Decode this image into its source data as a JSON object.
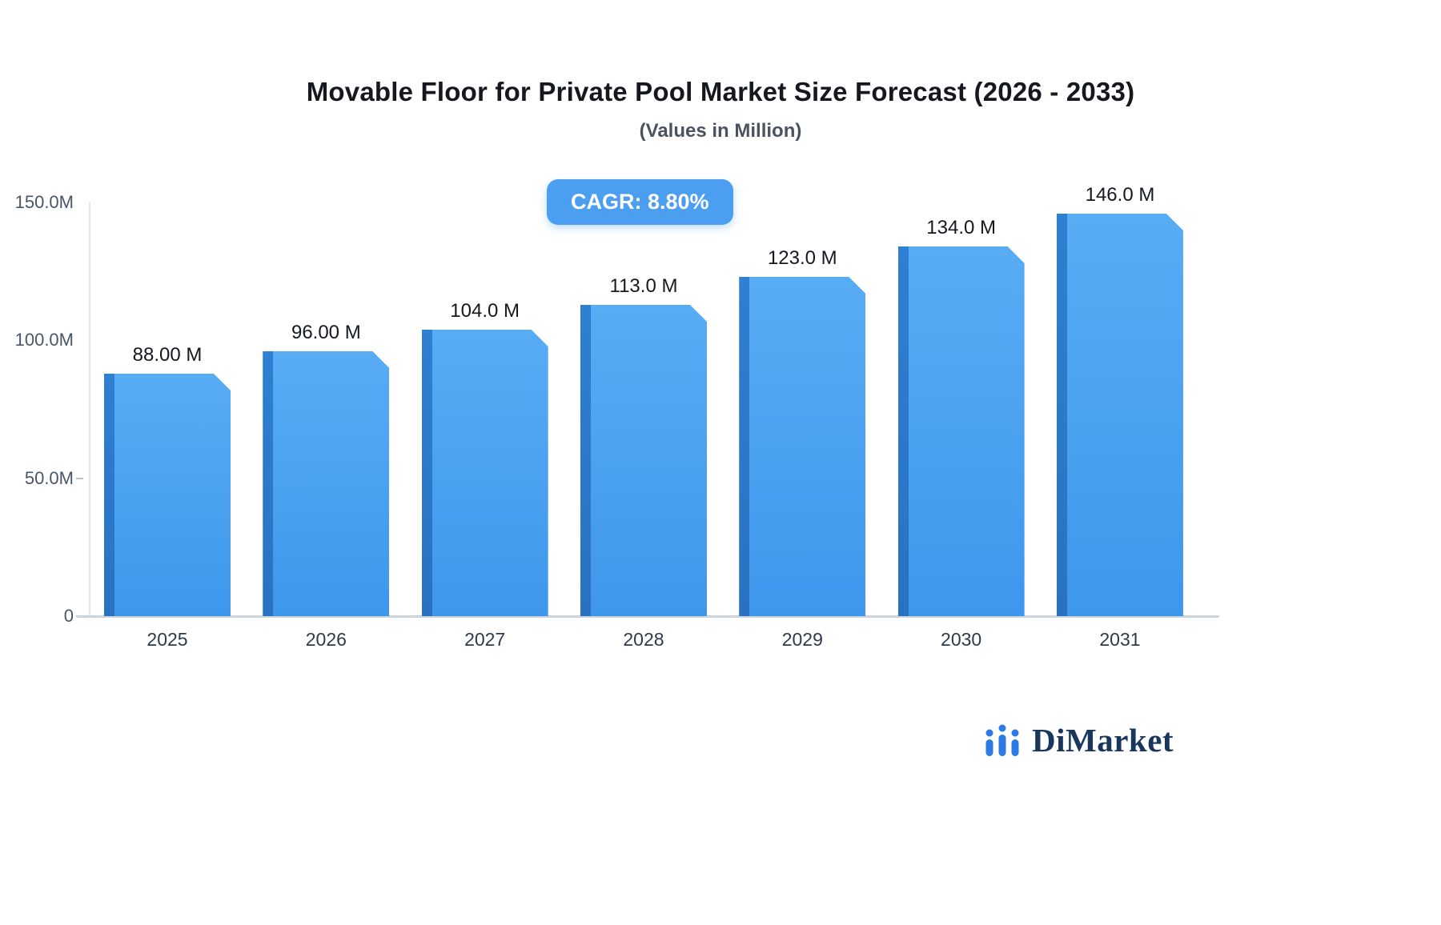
{
  "chart_data": {
    "type": "bar",
    "title": "Movable Floor for Private Pool Market Size Forecast (2026 - 2033)",
    "subtitle": "(Values in Million)",
    "annotation_badge": "CAGR: 8.80%",
    "categories": [
      "2025",
      "2026",
      "2027",
      "2028",
      "2029",
      "2030",
      "2031"
    ],
    "values": [
      88,
      96,
      104,
      113,
      123,
      134,
      146
    ],
    "value_labels": [
      "88.00 M",
      "96.00 M",
      "104.0 M",
      "113.0 M",
      "123.0 M",
      "134.0 M",
      "146.0 M"
    ],
    "unit": "Million",
    "ylim": [
      0,
      150
    ],
    "y_tick_labels": [
      "150.0M",
      "100.0M",
      "50.0M",
      "0"
    ],
    "xlabel": "",
    "ylabel": "",
    "grid": false,
    "legend": "none"
  },
  "colors": {
    "bar_fill_top": "#58acf4",
    "bar_fill_bottom": "#3e97ed",
    "bar_side": "#2d7bcb",
    "badge_bg": "#4c9ff0",
    "axis_gray": "#ccd3db",
    "logo_blue": "#2c7be5",
    "logo_text": "#19375c"
  },
  "logo": {
    "text": "DiMarket"
  }
}
